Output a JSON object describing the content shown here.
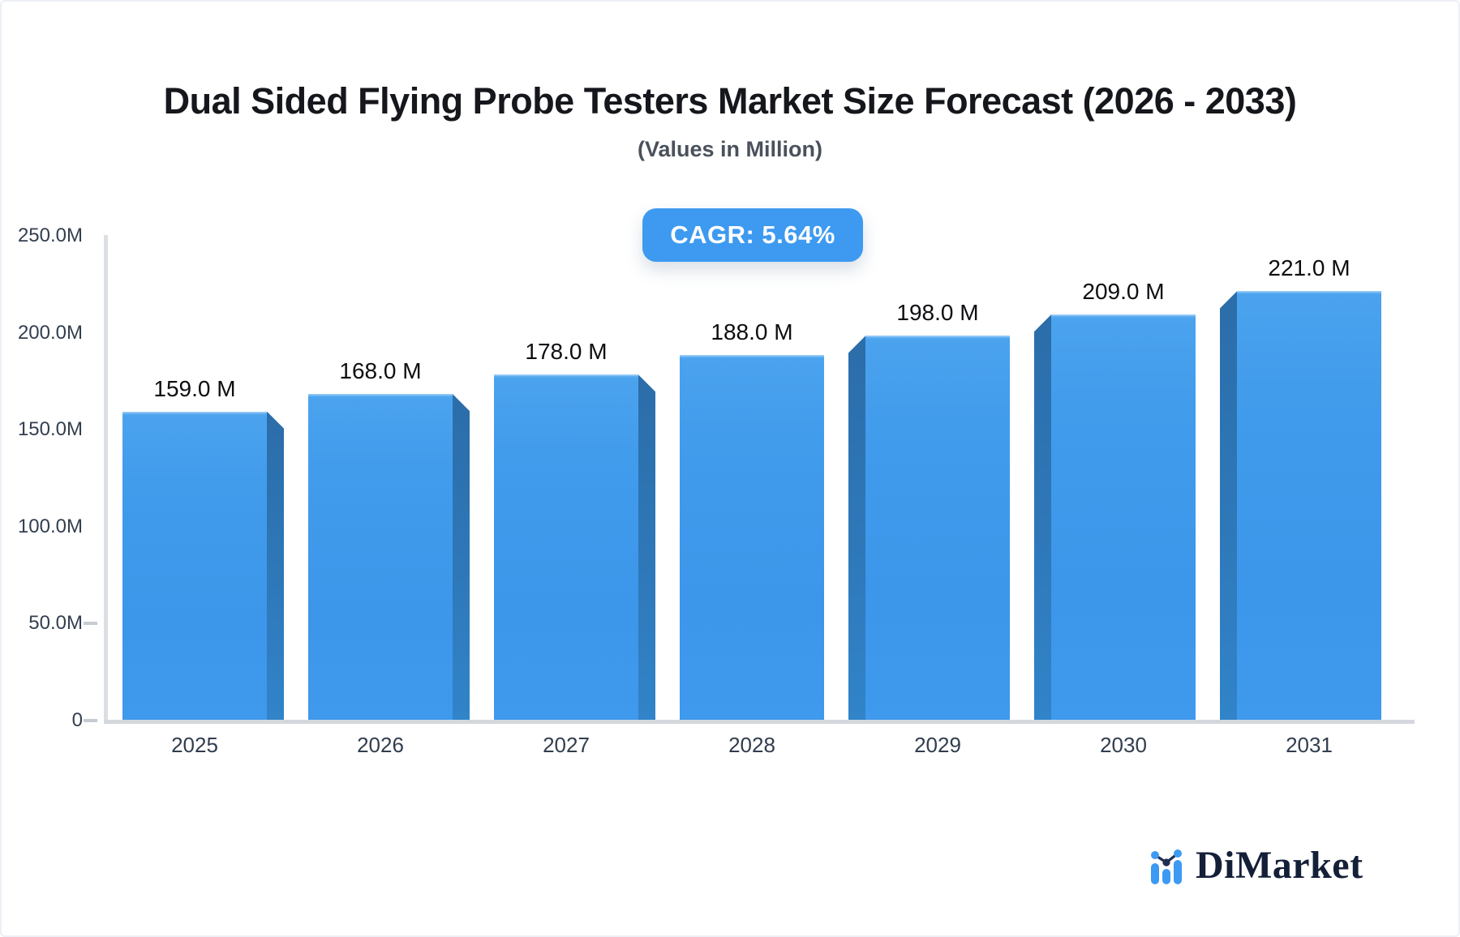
{
  "header": {
    "title": "Dual Sided Flying Probe Testers Market Size Forecast (2026 - 2033)",
    "subtitle": "(Values in Million)",
    "cagr_badge": "CAGR: 5.64%",
    "cagr_value": "5.64%"
  },
  "chart_data": {
    "type": "bar",
    "title": "Dual Sided Flying Probe Testers Market Size Forecast (2026 - 2033)",
    "subtitle": "(Values in Million)",
    "unit": "Million",
    "categories": [
      "2025",
      "2026",
      "2027",
      "2028",
      "2029",
      "2030",
      "2031"
    ],
    "values": [
      159,
      168,
      178,
      188,
      198,
      209,
      221
    ],
    "value_labels": [
      "159.0 M",
      "168.0 M",
      "178.0 M",
      "188.0 M",
      "198.0 M",
      "209.0 M",
      "221.0 M"
    ],
    "ylim": [
      0,
      250
    ],
    "yticks": [
      {
        "value": 0,
        "label": "0",
        "dash": true
      },
      {
        "value": 50,
        "label": "50.0M",
        "dash": true
      },
      {
        "value": 100,
        "label": "100.0M",
        "dash": false
      },
      {
        "value": 150,
        "label": "150.0M",
        "dash": false
      },
      {
        "value": 200,
        "label": "200.0M",
        "dash": false
      },
      {
        "value": 250,
        "label": "250.0M",
        "dash": false
      }
    ],
    "grid": false,
    "legend": false,
    "annotation": "CAGR: 5.64%",
    "bar_color": "#3f9ced",
    "bar_side_color": "#2e75b2"
  },
  "branding": {
    "logo_text": "DiMarket"
  },
  "colors": {
    "accent_blue": "#3e9af0",
    "bar_blue": "#3f9ced",
    "bar_side_blue": "#2e75b2",
    "axis_gray": "#d9dce1",
    "title_text": "#15171c",
    "subtitle_text": "#4a515c",
    "tick_text": "#333f4f",
    "value_text": "#0d0e11",
    "logo_navy": "#141f38"
  }
}
